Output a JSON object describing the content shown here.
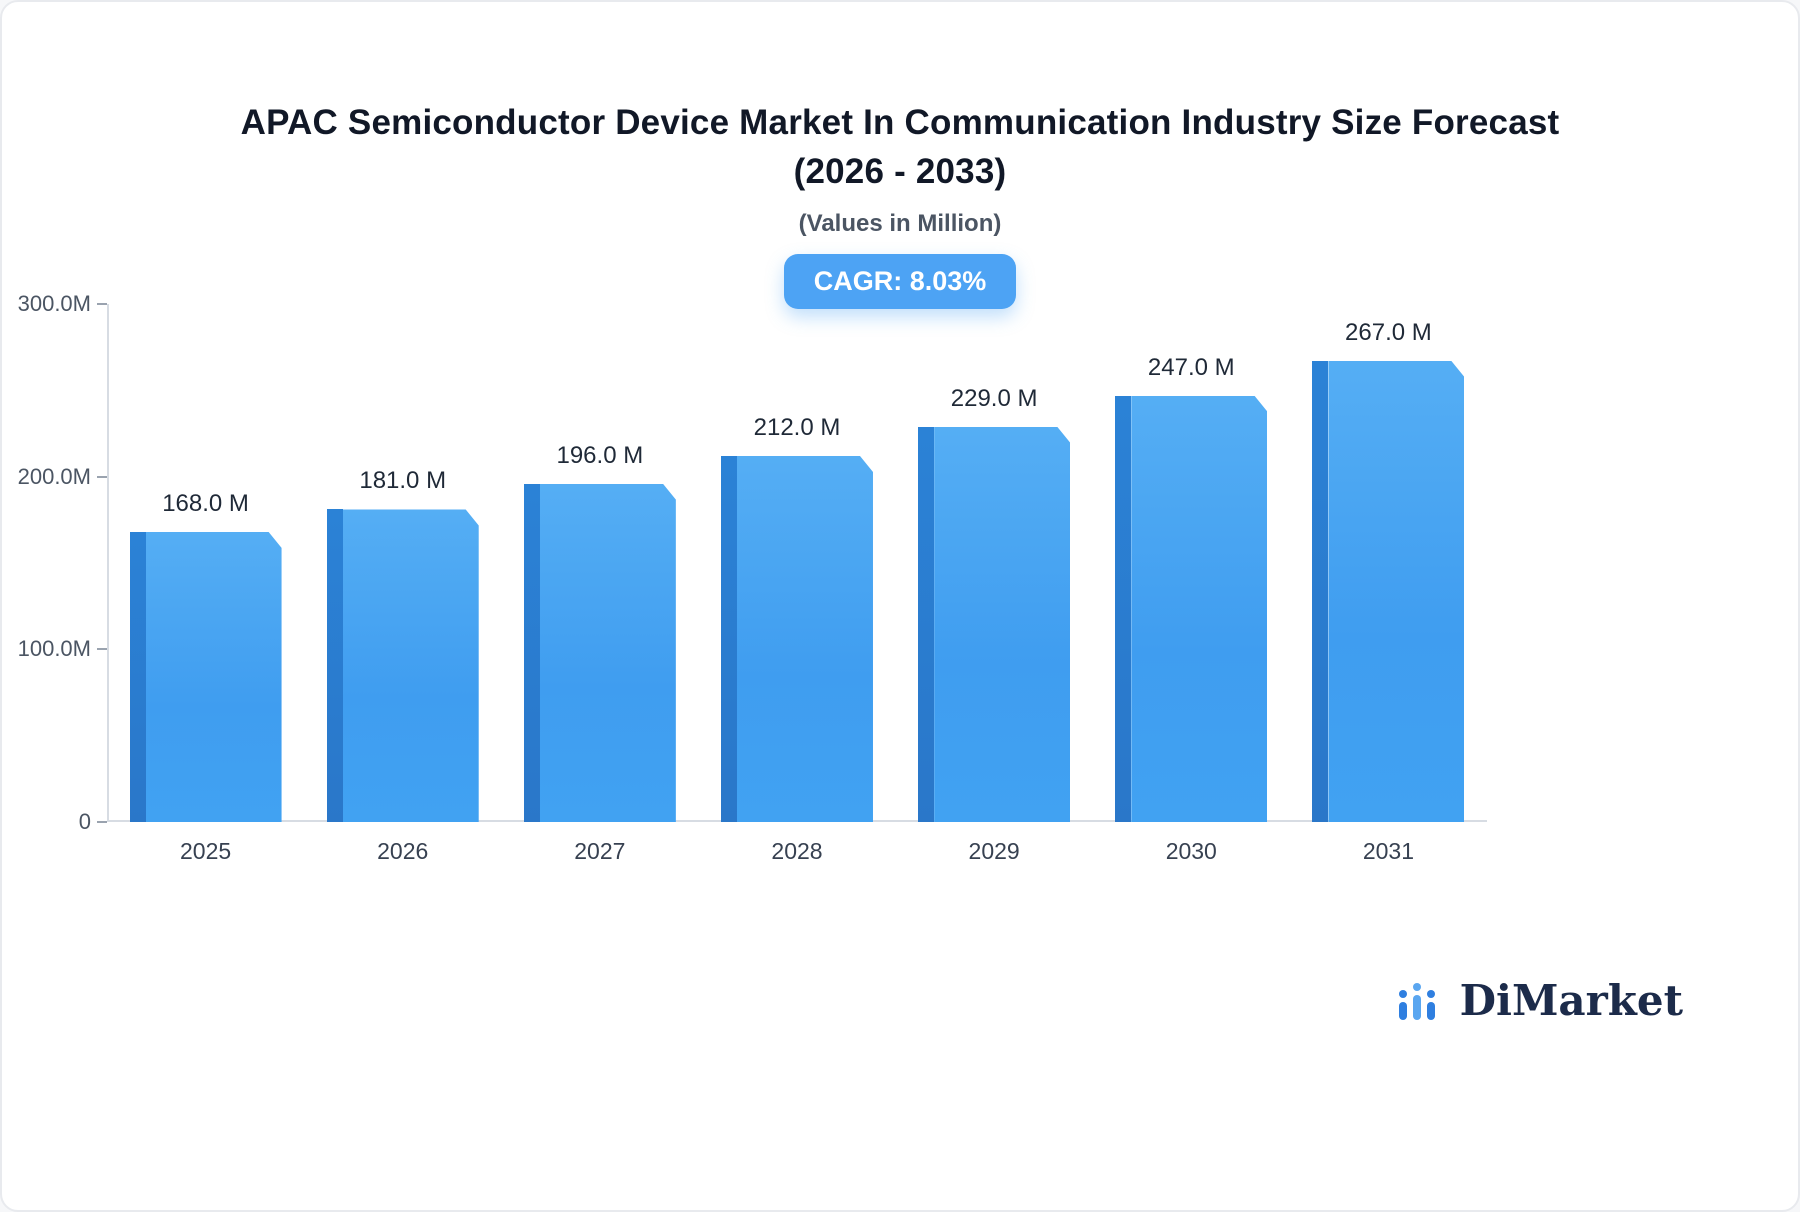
{
  "header": {
    "title_line1": "APAC Semiconductor Device Market In Communication Industry Size Forecast",
    "title_line2": "(2026 - 2033)",
    "subtitle": "(Values in Million)",
    "cagr_label": "CAGR: 8.03%"
  },
  "logo": {
    "text": "DiMarket"
  },
  "colors": {
    "bar_face": "#41a0f1",
    "bar_side": "#2a79cb",
    "badge": "#4da3f4",
    "axis": "#d7dce3",
    "logo_navy": "#1c2b4a",
    "logo_blue": "#2f7fe0"
  },
  "chart_data": {
    "type": "bar",
    "title": "APAC Semiconductor Device Market In Communication Industry Size Forecast (2026 - 2033)",
    "subtitle": "(Values in Million)",
    "annotation": "CAGR: 8.03%",
    "categories": [
      "2025",
      "2026",
      "2027",
      "2028",
      "2029",
      "2030",
      "2031"
    ],
    "values": [
      168,
      181,
      196,
      212,
      229,
      247,
      267
    ],
    "value_labels": [
      "168.0 M",
      "181.0 M",
      "196.0 M",
      "212.0 M",
      "229.0 M",
      "247.0 M",
      "267.0 M"
    ],
    "xlabel": "",
    "ylabel": "",
    "ylim": [
      0,
      300
    ],
    "yticks": [
      {
        "value": 0,
        "label": "0"
      },
      {
        "value": 100,
        "label": "100.0M"
      },
      {
        "value": 200,
        "label": "200.0M"
      },
      {
        "value": 300,
        "label": "300.0M"
      }
    ],
    "grid": false,
    "legend": false
  }
}
